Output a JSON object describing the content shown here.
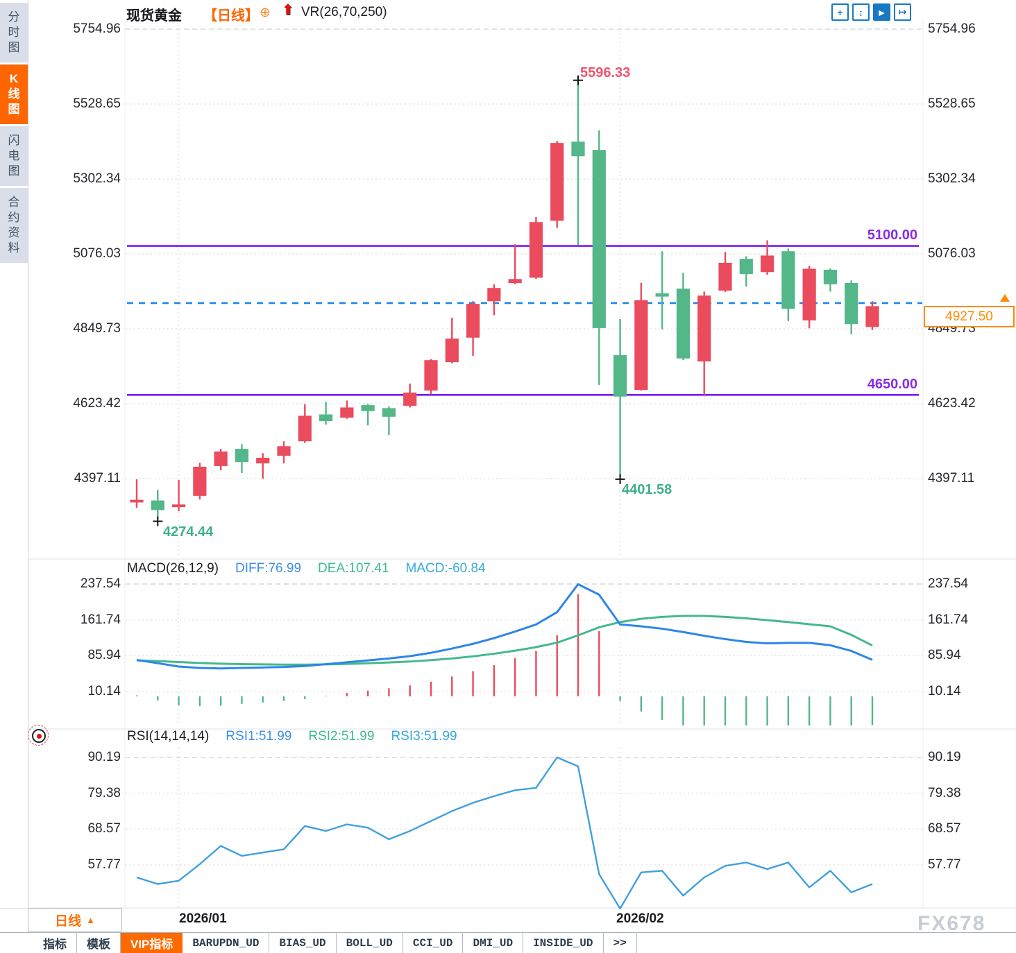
{
  "header": {
    "symbol": "现货黄金",
    "period_tag": "【日线】",
    "circle_icon": "⊕",
    "up_arrow": "⬆",
    "indicator_label": "VR(26,70,250)"
  },
  "toolbar": {
    "icons": [
      {
        "name": "pan-icon",
        "glyph": "+",
        "active": false
      },
      {
        "name": "axis-zoom-icon",
        "glyph": "↕",
        "active": false
      },
      {
        "name": "auto-scale-icon",
        "glyph": "►",
        "active": true
      },
      {
        "name": "shift-right-icon",
        "glyph": "↦",
        "active": false
      }
    ]
  },
  "sidebar": {
    "tabs": [
      {
        "label": "分时图",
        "active": false
      },
      {
        "label": "K线图",
        "active": true
      },
      {
        "label": "闪电图",
        "active": false
      },
      {
        "label": "合约资料",
        "active": false
      }
    ]
  },
  "main_axis": [
    "5754.96",
    "5528.65",
    "5302.34",
    "5076.03",
    "4849.73",
    "4623.42",
    "4397.11"
  ],
  "levels": {
    "upper_label": "5100.00",
    "lower_label": "4650.00"
  },
  "annotations": {
    "high": "5596.33",
    "low_first": "4274.44",
    "low_second": "4401.58"
  },
  "price_badge": {
    "value": "4927.50"
  },
  "macd_panel": {
    "title": "MACD(26,12,9)",
    "diff": "DIFF:76.99",
    "dea": "DEA:107.41",
    "macd": "MACD:-60.84",
    "axis": [
      "237.54",
      "161.74",
      "85.94",
      "10.14"
    ]
  },
  "rsi_panel": {
    "title": "RSI(14,14,14)",
    "rsi1": "RSI1:51.99",
    "rsi2": "RSI2:51.99",
    "rsi3": "RSI3:51.99",
    "axis": [
      "90.19",
      "79.38",
      "68.57",
      "57.77"
    ]
  },
  "xaxis_labels": [
    "2026/01",
    "2026/02"
  ],
  "period_button": {
    "label": "日线",
    "arrow": "▲"
  },
  "bottom_tabs": [
    {
      "label": "指标",
      "active": false,
      "mono": false
    },
    {
      "label": "模板",
      "active": false,
      "mono": false
    },
    {
      "label": "VIP指标",
      "active": true,
      "mono": false
    },
    {
      "label": "BARUPDN_UD",
      "active": false,
      "mono": true
    },
    {
      "label": "BIAS_UD",
      "active": false,
      "mono": true
    },
    {
      "label": "BOLL_UD",
      "active": false,
      "mono": true
    },
    {
      "label": "CCI_UD",
      "active": false,
      "mono": true
    },
    {
      "label": "DMI_UD",
      "active": false,
      "mono": true
    },
    {
      "label": "INSIDE_UD",
      "active": false,
      "mono": true
    },
    {
      "label": ">>",
      "active": false,
      "mono": true
    }
  ],
  "watermark": "FX678",
  "colors": {
    "up": "#ea4b5d",
    "down": "#53b789",
    "level_purple": "#7b1bf2",
    "dashed_blue": "#1c86ee",
    "accent_orange": "#ff6600",
    "diff_blue": "#2e86e8",
    "dea_green": "#43b98c",
    "rsi_blue": "#3fa0dd",
    "grid": "#e4e4e8",
    "annotation_red": "#f0556d",
    "annotation_green": "#3eb08b"
  },
  "chart_data": {
    "type": "candlestick",
    "symbol": "现货黄金",
    "period": "日线",
    "y_axis": [
      5754.96,
      5528.65,
      5302.34,
      5076.03,
      4849.73,
      4623.42,
      4397.11
    ],
    "candles_ohlc": [
      [
        4325,
        4395,
        4309,
        4333
      ],
      [
        4331,
        4363,
        4274.44,
        4302
      ],
      [
        4311,
        4393,
        4299,
        4319
      ],
      [
        4345,
        4445,
        4334,
        4433
      ],
      [
        4435,
        4487,
        4422,
        4479
      ],
      [
        4487,
        4501,
        4414,
        4447
      ],
      [
        4443,
        4474,
        4397,
        4460
      ],
      [
        4466,
        4510,
        4443,
        4495
      ],
      [
        4510,
        4622,
        4505,
        4587
      ],
      [
        4591,
        4629,
        4560,
        4571
      ],
      [
        4581,
        4633,
        4578,
        4612
      ],
      [
        4619,
        4623,
        4558,
        4601
      ],
      [
        4610,
        4615,
        4529,
        4584
      ],
      [
        4617,
        4684,
        4612,
        4657
      ],
      [
        4663,
        4758,
        4652,
        4755
      ],
      [
        4749,
        4883,
        4745,
        4820
      ],
      [
        4823,
        4933,
        4768,
        4925
      ],
      [
        4933,
        4984,
        4891,
        4973
      ],
      [
        4988,
        5105,
        4984,
        5000
      ],
      [
        5004,
        5187,
        5000,
        5172
      ],
      [
        5176,
        5417,
        5155,
        5411
      ],
      [
        5415,
        5596.33,
        5103,
        5371
      ],
      [
        5390,
        5449,
        4680,
        4852
      ],
      [
        4770,
        4879,
        4401.58,
        4645
      ],
      [
        4665,
        4988,
        4663,
        4936
      ],
      [
        4957,
        5084,
        4848,
        4947
      ],
      [
        4971,
        5019,
        4755,
        4760
      ],
      [
        4751,
        4962,
        4646,
        4950
      ],
      [
        4965,
        5082,
        4961,
        5049
      ],
      [
        5061,
        5069,
        4977,
        5015
      ],
      [
        5021,
        5117,
        5013,
        5071
      ],
      [
        5084,
        5092,
        4873,
        4910
      ],
      [
        4875,
        5040,
        4851,
        5031
      ],
      [
        5028,
        5032,
        4962,
        4984
      ],
      [
        4988,
        4996,
        4833,
        4864
      ],
      [
        4855,
        4933,
        4846,
        4918
      ]
    ],
    "month_gridline_indices": {
      "2026/01": 2,
      "2026/02": 23
    },
    "levels": [
      5100.0,
      4650.0
    ],
    "current_price": 4927.5,
    "high_annotation": {
      "index": 21,
      "value": 5596.33
    },
    "low_annotations": [
      {
        "index": 1,
        "value": 4274.44
      },
      {
        "index": 23,
        "value": 4401.58
      }
    ],
    "macd": {
      "params": [
        26,
        12,
        9
      ],
      "axis": [
        237.54,
        161.74,
        85.94,
        10.14
      ],
      "diff": [
        77,
        70,
        63,
        60,
        59,
        60,
        61,
        62,
        64,
        68,
        72,
        76,
        80,
        85,
        92,
        101,
        111,
        123,
        137,
        152,
        178,
        237,
        215,
        152,
        148,
        143,
        136,
        128,
        121,
        115,
        112,
        113,
        113,
        108,
        96,
        76.99
      ],
      "dea": [
        76,
        74.5,
        72.5,
        70.5,
        69,
        68,
        67.5,
        67,
        67,
        67.5,
        68.5,
        70,
        71.5,
        73.5,
        76.5,
        80,
        84.5,
        90,
        96.5,
        104,
        113.5,
        129,
        146,
        157,
        164,
        168,
        170,
        170,
        168,
        165,
        161,
        157,
        152.5,
        148,
        130,
        107.41
      ],
      "last_diff": 76.99,
      "last_dea": 107.41,
      "last_macd": -60.84,
      "histogram_rule": "2*(diff-dea)"
    },
    "rsi": {
      "params": [
        14,
        14,
        14
      ],
      "axis": [
        90.19,
        79.38,
        68.57,
        57.77
      ],
      "values": [
        54,
        52,
        53,
        58,
        63.5,
        60.5,
        61.5,
        62.5,
        69.5,
        68,
        70,
        69,
        65.5,
        68,
        71,
        74,
        76.5,
        78.5,
        80.3,
        81,
        90.19,
        87.5,
        55,
        44,
        55.5,
        56,
        48.5,
        54,
        57.5,
        58.5,
        56.5,
        58.5,
        51,
        56,
        49.5,
        51.99
      ],
      "last_rsi1": 51.99,
      "last_rsi2": 51.99,
      "last_rsi3": 51.99
    }
  }
}
